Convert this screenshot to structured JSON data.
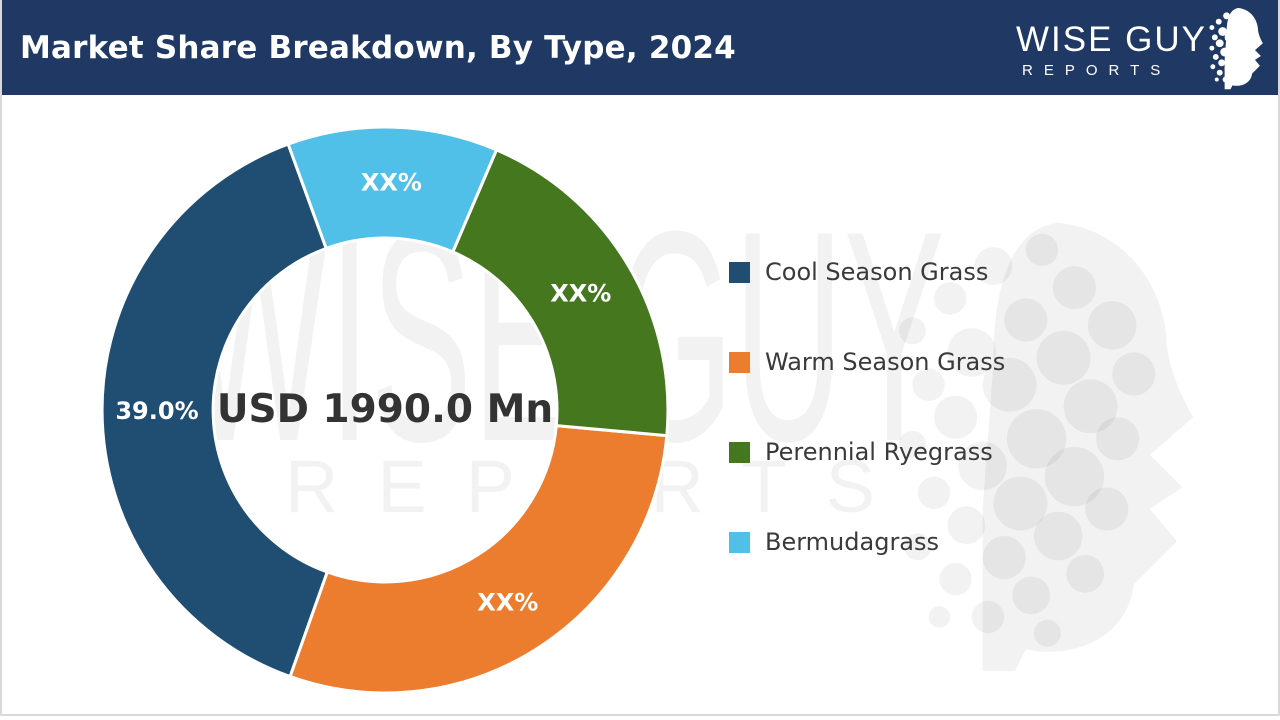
{
  "header": {
    "title": "Market Share Breakdown, By Type, 2024",
    "logo": {
      "line1": "WISE GUY",
      "line2": "REPORTS"
    }
  },
  "watermark": {
    "line1": "WISE GUY",
    "line2": "REPORTS"
  },
  "chart_data": {
    "type": "pie",
    "donut": true,
    "title": "Market Share Breakdown, By Type, 2024",
    "center_label": "USD 1990.0 Mn",
    "start_angle_deg": 110,
    "direction": "counterclockwise",
    "legend_position": "right",
    "segments": [
      {
        "label": "Cool Season Grass",
        "value": 39.0,
        "display": "39.0%",
        "color": "#204e73",
        "value_is_estimate": false
      },
      {
        "label": "Warm Season Grass",
        "value": 29.0,
        "display": "XX%",
        "color": "#ed7d2e",
        "value_is_estimate": true
      },
      {
        "label": "Perennial Ryegrass",
        "value": 20.0,
        "display": "XX%",
        "color": "#45771f",
        "value_is_estimate": true
      },
      {
        "label": "Bermudagrass",
        "value": 12.0,
        "display": "XX%",
        "color": "#50c0e8",
        "value_is_estimate": true
      }
    ]
  },
  "colors": {
    "header_bg": "#1f3864",
    "center_text": "#333333",
    "legend_text": "#3a3a3a",
    "border": "#d9d9d9"
  }
}
